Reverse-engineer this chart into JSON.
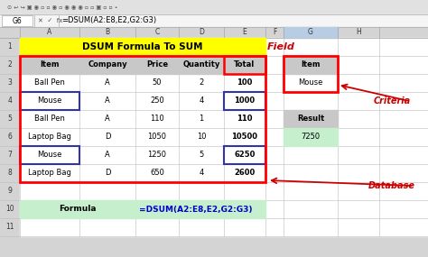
{
  "title": "DSUM Formula To SUM",
  "field_label": "Field",
  "criteria_label": "Criteria",
  "database_label": "Database",
  "formula_label": "Formula",
  "formula_value": "=DSUM(A2:E8,E2,G2:G3)",
  "formula_bar": "=DSUM(A2:E8,E2,G2:G3)",
  "cell_ref": "G6",
  "col_letters": [
    "A",
    "B",
    "C",
    "D",
    "E",
    "F",
    "G",
    "H"
  ],
  "row_numbers": [
    "1",
    "2",
    "3",
    "4",
    "5",
    "6",
    "7",
    "8",
    "9",
    "10",
    "11"
  ],
  "headers": [
    "Item",
    "Company",
    "Price",
    "Quantity",
    "Total"
  ],
  "data_rows": [
    [
      "Ball Pen",
      "A",
      "50",
      "2",
      "100"
    ],
    [
      "Mouse",
      "A",
      "250",
      "4",
      "1000"
    ],
    [
      "Ball Pen",
      "A",
      "110",
      "1",
      "110"
    ],
    [
      "Laptop Bag",
      "D",
      "1050",
      "10",
      "10500"
    ],
    [
      "Mouse",
      "A",
      "1250",
      "5",
      "6250"
    ],
    [
      "Laptop Bag",
      "D",
      "650",
      "4",
      "2600"
    ]
  ],
  "criteria_header": "Item",
  "criteria_value": "Mouse",
  "result_label": "Result",
  "result_value": "7250",
  "title_bg": "#FFFF00",
  "header_bg": "#C8C8C8",
  "result_label_bg": "#C8C8C8",
  "result_val_bg": "#C6EFCE",
  "formula_bg": "#C6EFCE",
  "highlight_rows": [
    1,
    4
  ],
  "bg_color": "#D4D4D4",
  "cell_bg": "#FFFFFF",
  "toolbar_color": "#E1E1E1",
  "formula_bar_color": "#F5F5F5",
  "col_header_color": "#D4D4D4",
  "g_col_highlight": "#B8CCE4",
  "label_red": "#CC0000",
  "border_blue": "#3333AA",
  "grid_color": "#BBBBBB"
}
